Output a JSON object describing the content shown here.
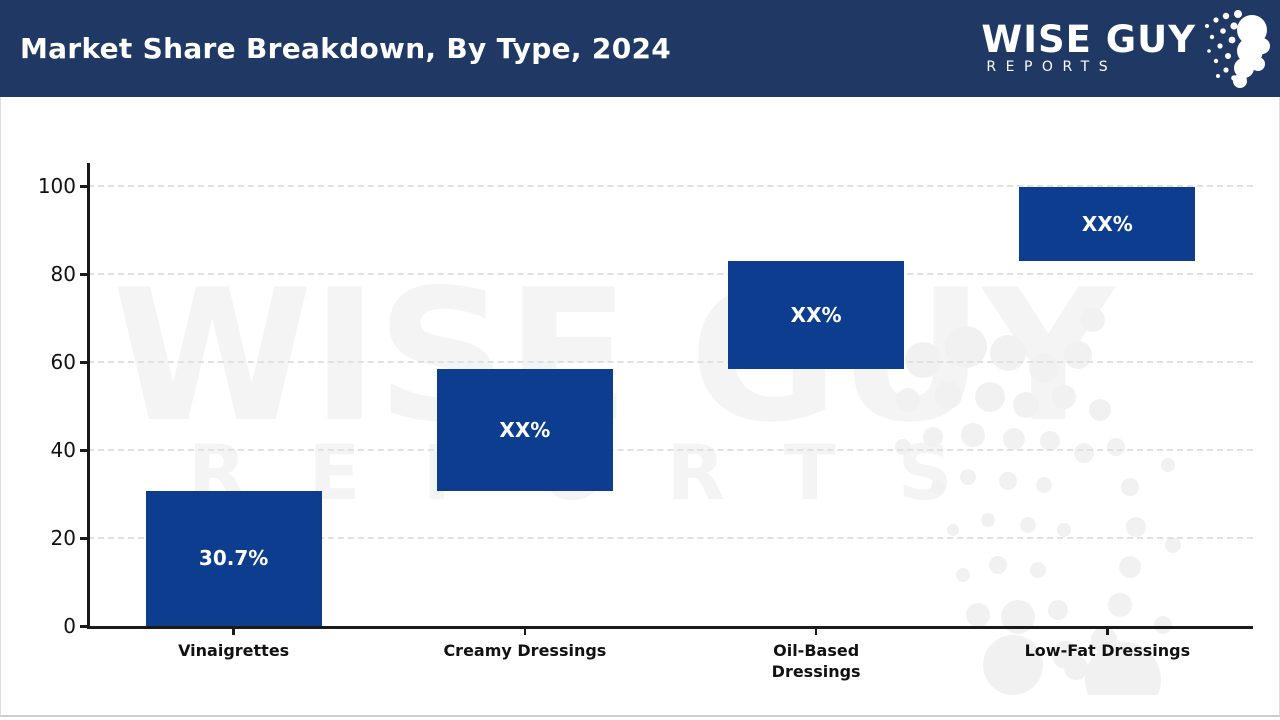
{
  "header": {
    "title": "Market Share Breakdown, By Type, 2024",
    "logo": {
      "brand": "WISE GUY",
      "sub": "REPORTS"
    }
  },
  "watermark": {
    "brand": "WISE GUY",
    "sub": "REPORTS"
  },
  "chart_data": {
    "type": "bar",
    "variant": "floating-waterfall",
    "title": "Market Share Breakdown, By Type, 2024",
    "xlabel": "",
    "ylabel": "",
    "ylim": [
      0,
      100
    ],
    "yticks": [
      0,
      20,
      40,
      60,
      80,
      100
    ],
    "grid": "horizontal-dashed",
    "legend": "none",
    "categories": [
      "Vinaigrettes",
      "Creamy Dressings",
      "Oil-Based\nDressings",
      "Low-Fat Dressings"
    ],
    "segments": [
      {
        "category": "Vinaigrettes",
        "start": 0,
        "end": 30.7,
        "label": "30.7%"
      },
      {
        "category": "Creamy Dressings",
        "start": 30.7,
        "end": 58.4,
        "label": "XX%"
      },
      {
        "category": "Oil-Based Dressings",
        "start": 58.4,
        "end": 82.9,
        "label": "XX%"
      },
      {
        "category": "Low-Fat Dressings",
        "start": 82.9,
        "end": 99.8,
        "label": "XX%"
      }
    ],
    "colors": {
      "bar": "#0d3d8f",
      "bar_label": "#ffffff",
      "axis": "#1a1a1a",
      "grid": "#e1e1e1",
      "tick_label": "#111111",
      "header_bg": "#203864"
    }
  }
}
